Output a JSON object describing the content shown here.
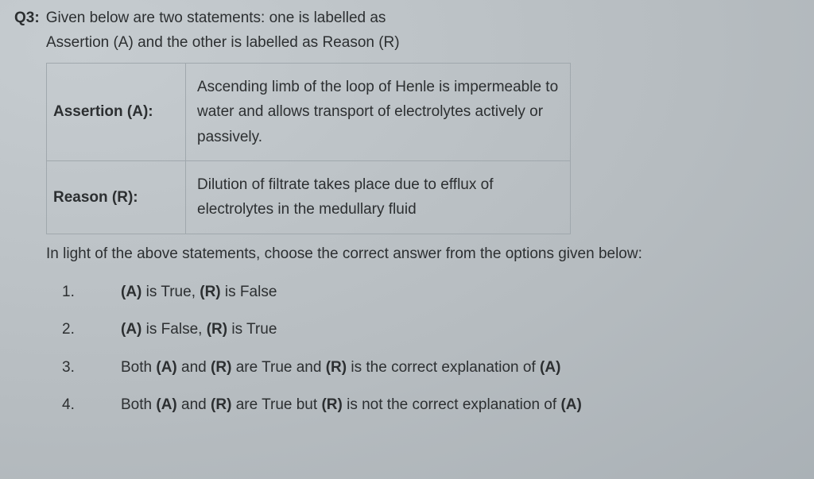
{
  "question": {
    "number": "Q3:",
    "intro_line1": "Given below are two statements: one is labelled as",
    "intro_line2": "Assertion (A) and the other is labelled as Reason (R)"
  },
  "assertion": {
    "label": "Assertion (A):",
    "text": "Ascending limb of the loop of Henle is impermeable to water and allows transport of electrolytes actively or passively."
  },
  "reason": {
    "label": "Reason (R):",
    "text": "Dilution of filtrate takes place due to efflux of electrolytes in the medullary fluid"
  },
  "instruction": "In light of the above statements, choose the correct answer from the options given below:",
  "options": {
    "o1_num": "1.",
    "o1_a": "(A)",
    "o1_mid": " is True, ",
    "o1_r": "(R)",
    "o1_end": " is False",
    "o2_num": "2.",
    "o2_a": "(A)",
    "o2_mid": " is False, ",
    "o2_r": "(R)",
    "o2_end": " is True",
    "o3_num": "3.",
    "o3_pre": "Both ",
    "o3_a": "(A)",
    "o3_mid1": " and ",
    "o3_r1": "(R)",
    "o3_mid2": " are True and ",
    "o3_r2": "(R)",
    "o3_mid3": " is the correct explanation of ",
    "o3_a2": "(A)",
    "o4_num": "4.",
    "o4_pre": "Both ",
    "o4_a": "(A)",
    "o4_mid1": " and ",
    "o4_r1": "(R)",
    "o4_mid2": " are True but ",
    "o4_r2": "(R)",
    "o4_mid3": " is not the correct explanation of ",
    "o4_a2": "(A)"
  }
}
